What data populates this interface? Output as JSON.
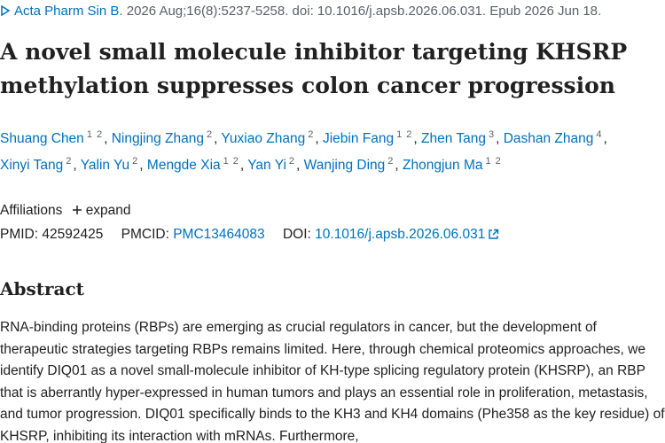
{
  "citation": {
    "journal": "Acta Pharm Sin B.",
    "details": "2026 Aug;16(8):5237-5258. doi: 10.1016/j.apsb.2026.06.031. Epub 2026 Jun 18."
  },
  "title": "A novel small molecule inhibitor targeting KHSRP methylation suppresses colon cancer progression",
  "author_separator": ",",
  "authors": [
    {
      "name": "Shuang Chen",
      "affiliations": [
        "1",
        "2"
      ]
    },
    {
      "name": "Ningjing Zhang",
      "affiliations": [
        "2"
      ]
    },
    {
      "name": "Yuxiao Zhang",
      "affiliations": [
        "2"
      ]
    },
    {
      "name": "Jiebin Fang",
      "affiliations": [
        "1",
        "2"
      ]
    },
    {
      "name": "Zhen Tang",
      "affiliations": [
        "3"
      ]
    },
    {
      "name": "Dashan Zhang",
      "affiliations": [
        "4"
      ]
    },
    {
      "name": "Xinyi Tang",
      "affiliations": [
        "2"
      ]
    },
    {
      "name": "Yalin Yu",
      "affiliations": [
        "2"
      ]
    },
    {
      "name": "Mengde Xia",
      "affiliations": [
        "1",
        "2"
      ]
    },
    {
      "name": "Yan Yi",
      "affiliations": [
        "2"
      ]
    },
    {
      "name": "Wanjing Ding",
      "affiliations": [
        "2"
      ]
    },
    {
      "name": "Zhongjun Ma",
      "affiliations": [
        "1",
        "2"
      ]
    }
  ],
  "affiliations": {
    "label": "Affiliations",
    "toggle": "expand"
  },
  "identifiers": {
    "pmid_label": "PMID:",
    "pmid": "42592425",
    "pmcid_label": "PMCID:",
    "pmcid": "PMC13464083",
    "doi_label": "DOI:",
    "doi": "10.1016/j.apsb.2026.06.031"
  },
  "abstract": {
    "heading": "Abstract",
    "text": "RNA-binding proteins (RBPs) are emerging as crucial regulators in cancer, but the development of therapeutic strategies targeting RBPs remains limited. Here, through chemical proteomics approaches, we identify DIQ01 as a novel small-molecule inhibitor of KH-type splicing regulatory protein (KHSRP), an RBP that is aberrantly hyper-expressed in human tumors and plays an essential role in proliferation, metastasis, and tumor progression. DIQ01 specifically binds to the KH3 and KH4 domains (Phe358 as the key residue) of KHSRP, inhibiting its interaction with mRNAs. Furthermore,"
  }
}
